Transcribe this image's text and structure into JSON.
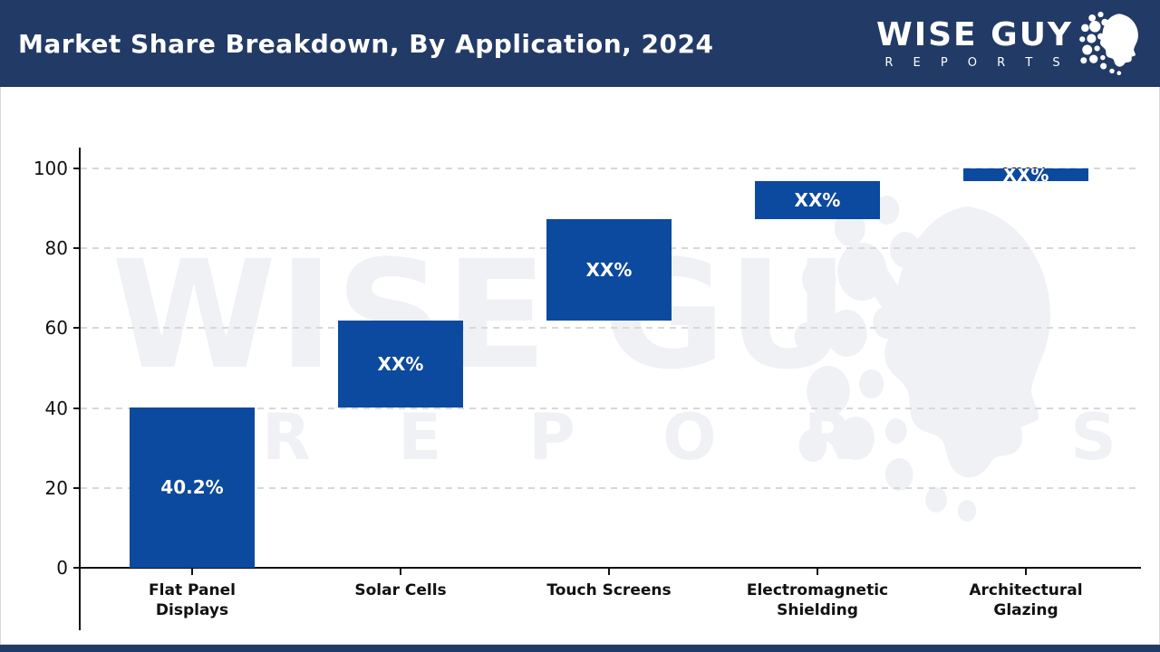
{
  "header": {
    "title": "Market Share Breakdown, By Application, 2024",
    "logo": {
      "line1": "WISE GUY",
      "line2": "R E P O R T S"
    }
  },
  "watermark": {
    "line1": "WISE GUY",
    "line2": "R E P O R T S"
  },
  "colors": {
    "header_bg": "#223a66",
    "footer_bg": "#223a66",
    "bar": "#0b4a9e",
    "grid": "#d8d8d8",
    "axis": "#111111",
    "tick_label": "#111111",
    "bar_label_inside": "#ffffff",
    "bar_label_outside": "#111111",
    "watermark": "#f0f1f4"
  },
  "chart_data": {
    "type": "bar",
    "subtype": "waterfall",
    "title": "Market Share Breakdown, By Application, 2024",
    "xlabel": "",
    "ylabel": "",
    "ylim": [
      0,
      105
    ],
    "yticks": [
      0,
      20,
      40,
      60,
      80,
      100
    ],
    "grid": "horizontal-dashed",
    "legend": "none",
    "categories": [
      "Flat Panel Displays",
      "Solar Cells",
      "Touch Screens",
      "Electromagnetic Shielding",
      "Architectural Glazing"
    ],
    "category_label_lines": [
      [
        "Flat Panel",
        "Displays"
      ],
      [
        "Solar Cells"
      ],
      [
        "Touch Screens"
      ],
      [
        "Electromagnetic",
        "Shielding"
      ],
      [
        "Architectural",
        "Glazing"
      ]
    ],
    "segments": [
      {
        "category": "Flat Panel Displays",
        "start": 0,
        "end": 40.2,
        "label": "40.2%"
      },
      {
        "category": "Solar Cells",
        "start": 40.2,
        "end": 62.0,
        "label": "XX%"
      },
      {
        "category": "Touch Screens",
        "start": 62.0,
        "end": 87.2,
        "label": "XX%"
      },
      {
        "category": "Electromagnetic Shielding",
        "start": 87.2,
        "end": 96.8,
        "label": "XX%"
      },
      {
        "category": "Architectural Glazing",
        "start": 96.8,
        "end": 100,
        "label": "XX%"
      }
    ]
  }
}
